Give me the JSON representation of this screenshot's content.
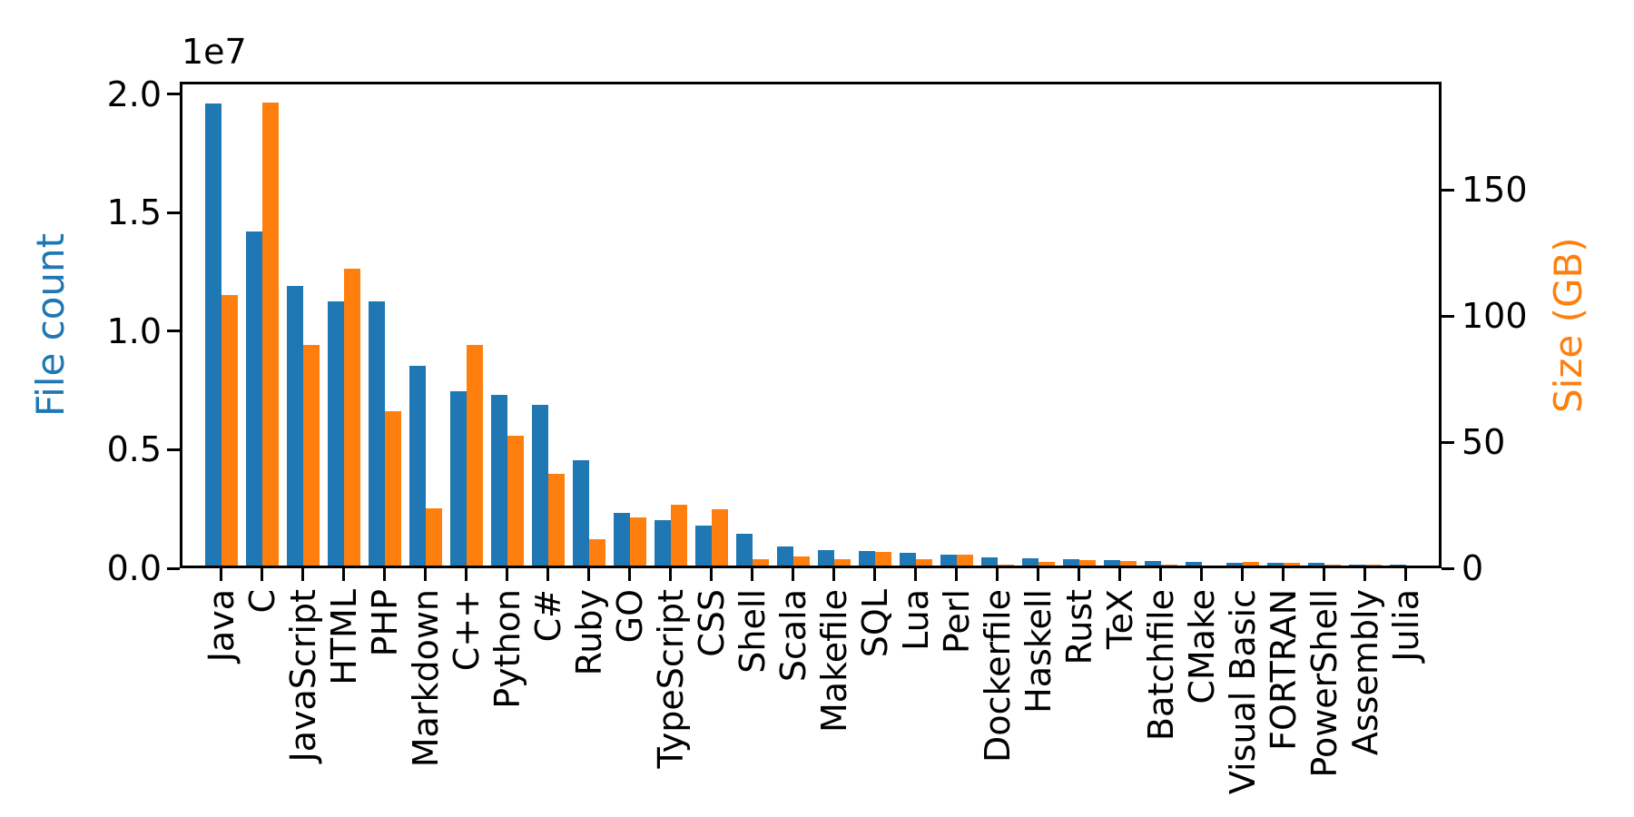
{
  "figure": {
    "background": "#ffffff",
    "axis_color": "#000000"
  },
  "chart_data": {
    "type": "bar",
    "title": "",
    "categories": [
      "Java",
      "C",
      "JavaScript",
      "HTML",
      "PHP",
      "Markdown",
      "C++",
      "Python",
      "C#",
      "Ruby",
      "GO",
      "TypeScript",
      "CSS",
      "Shell",
      "Scala",
      "Makefile",
      "SQL",
      "Lua",
      "Perl",
      "Dockerfile",
      "Haskell",
      "Rust",
      "TeX",
      "Batchfile",
      "CMake",
      "Visual Basic",
      "FORTRAN",
      "PowerShell",
      "Assembly",
      "Julia"
    ],
    "series": [
      {
        "name": "File count",
        "axis": "left",
        "color": "#1f77b4",
        "values": [
          19548190,
          14143113,
          11839883,
          11178557,
          11177610,
          8464626,
          7380520,
          7226626,
          6811652,
          4473331,
          2265436,
          1940406,
          1734406,
          1385648,
          835755,
          679430,
          656671,
          578554,
          497949,
          366505,
          340623,
          322431,
          251015,
          236945,
          175282,
          155652,
          142038,
          136846,
          82905,
          58317
        ]
      },
      {
        "name": "Size (GB)",
        "axis": "right",
        "color": "#ff7f0e",
        "values": [
          107.7,
          183.83,
          87.82,
          118.12,
          61.41,
          23.09,
          87.73,
          52.03,
          36.83,
          10.95,
          19.28,
          24.59,
          22.67,
          3.01,
          3.87,
          2.92,
          5.67,
          2.81,
          4.7,
          0.71,
          1.85,
          2.68,
          2.15,
          0.7,
          0.54,
          1.91,
          1.62,
          0.69,
          0.78,
          0.29
        ]
      }
    ],
    "left_axis": {
      "label": "File count",
      "color": "#1f77b4",
      "offset_text": "1e7",
      "tick_labels": [
        "0.0",
        "0.5",
        "1.0",
        "1.5",
        "2.0"
      ],
      "tick_values": [
        0,
        5000000,
        10000000,
        15000000,
        20000000
      ],
      "min": 0,
      "max": 20526000
    },
    "right_axis": {
      "label": "Size (GB)",
      "color": "#ff7f0e",
      "tick_labels": [
        "0",
        "50",
        "100",
        "150"
      ],
      "tick_values": [
        0,
        50,
        100,
        150
      ],
      "min": 0,
      "max": 193
    },
    "x_axis": {
      "tick_rotation_deg": 90
    },
    "legend": null,
    "grid": false
  }
}
